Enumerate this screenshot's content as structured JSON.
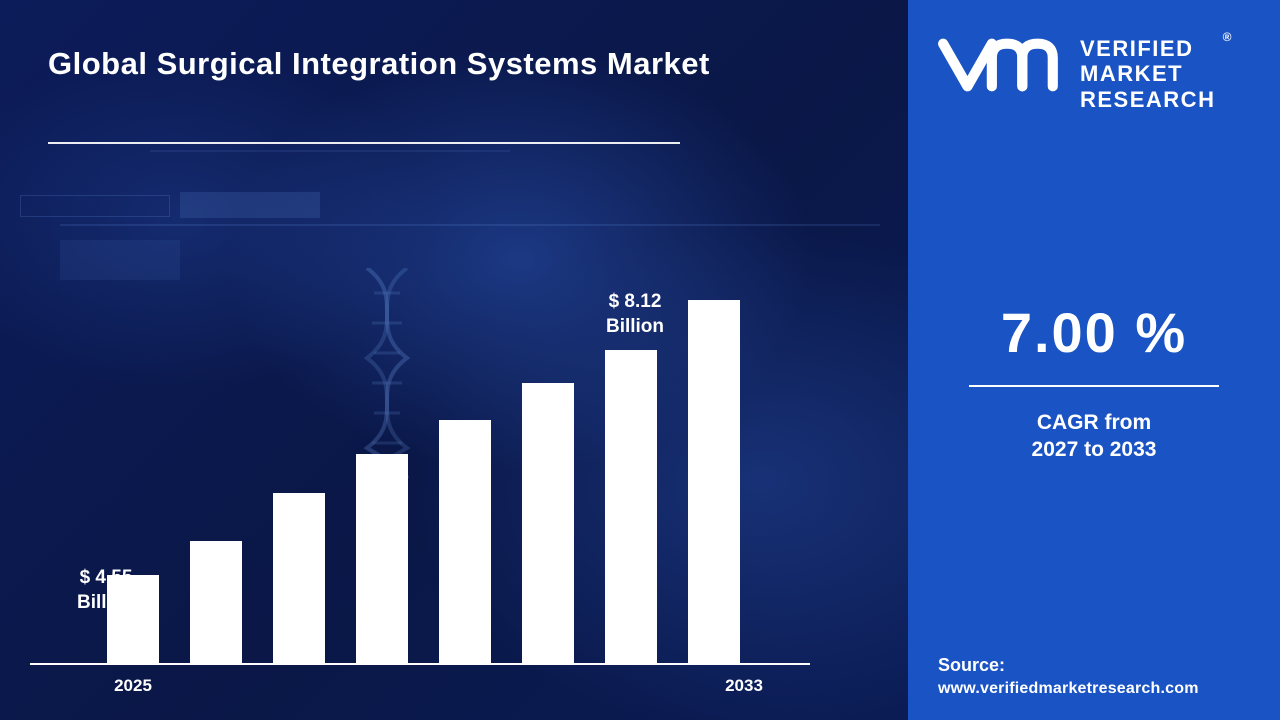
{
  "title": "Global Surgical Integration Systems Market",
  "colors": {
    "panel_blue": "#1a53c4",
    "background_navy": "#0a1850",
    "bar_white": "#ffffff"
  },
  "brand": {
    "monogram_icon": "vmr-logo",
    "name_lines": [
      "VERIFIED",
      "MARKET",
      "RESEARCH"
    ],
    "registered_mark": "®"
  },
  "cagr": {
    "value": "7.00 %",
    "label_line1": "CAGR from",
    "label_line2": "2027 to 2033"
  },
  "source": {
    "label": "Source:",
    "url": "www.verifiedmarketresearch.com"
  },
  "chart_data": {
    "type": "bar",
    "title": "Global Surgical Integration Systems Market",
    "unit": "USD Billion",
    "categories": [
      "2025",
      "",
      "",
      "",
      "",
      "",
      "",
      "2033"
    ],
    "values": [
      4.55,
      4.99,
      5.61,
      6.12,
      6.56,
      7.04,
      7.47,
      8.12
    ],
    "first_bar_annotation": {
      "value_line": "$ 4.55",
      "unit_line": "Billion"
    },
    "last_bar_annotation": {
      "value_line": "$ 8.12",
      "unit_line": "Billion"
    },
    "x_axis_labels_visible": [
      "2025",
      "2033"
    ],
    "ylim": [
      3.4,
      8.6
    ],
    "bar_color": "#ffffff",
    "grid": false,
    "legend": false,
    "xlabel": "",
    "ylabel": ""
  }
}
